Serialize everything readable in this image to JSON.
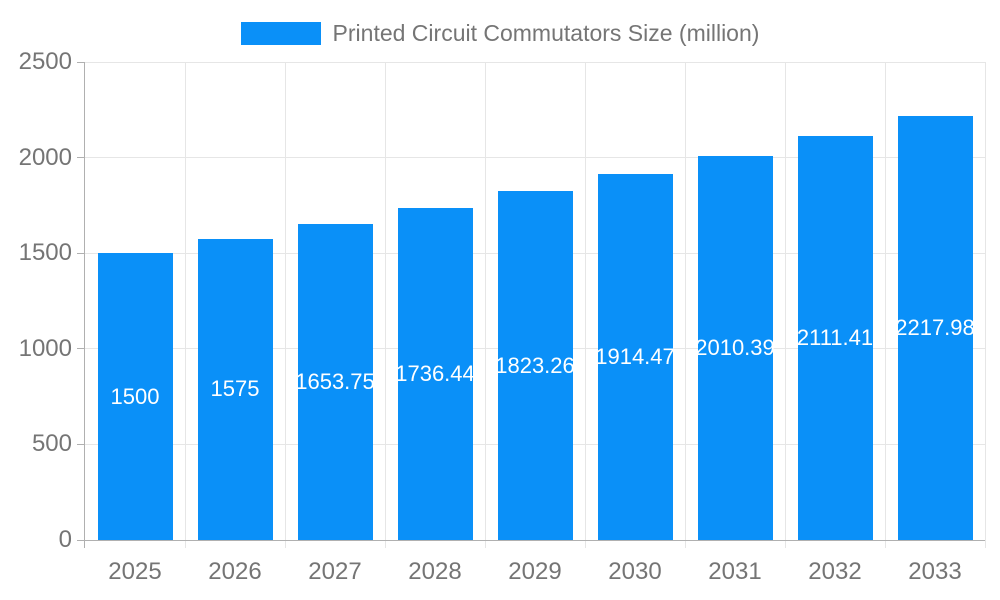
{
  "legend": {
    "label": "Printed Circuit Commutators Size (million)"
  },
  "colors": {
    "bar": "#0a90f8",
    "grid": "#e6e6e6",
    "axis": "#b0b0b0",
    "tick_label": "#757575",
    "value_label": "#ffffff",
    "background": "#ffffff"
  },
  "chart_data": {
    "type": "bar",
    "title": "Printed Circuit Commutators Size (million)",
    "legend_entries": [
      "Printed Circuit Commutators Size (million)"
    ],
    "legend_position": "top",
    "categories": [
      "2025",
      "2026",
      "2027",
      "2028",
      "2029",
      "2030",
      "2031",
      "2032",
      "2033"
    ],
    "values": [
      1500,
      1575,
      1653.75,
      1736.44,
      1823.26,
      1914.47,
      2010.39,
      2111.41,
      2217.98
    ],
    "value_labels": [
      "1500",
      "1575",
      "1653.75",
      "1736.44",
      "1823.26",
      "1914.47",
      "2010.39",
      "2111.41",
      "2217.98"
    ],
    "xlabel": "",
    "ylabel": "",
    "ylim": [
      0,
      2500
    ],
    "y_ticks": [
      0,
      500,
      1000,
      1500,
      2000,
      2500
    ],
    "grid": true
  }
}
